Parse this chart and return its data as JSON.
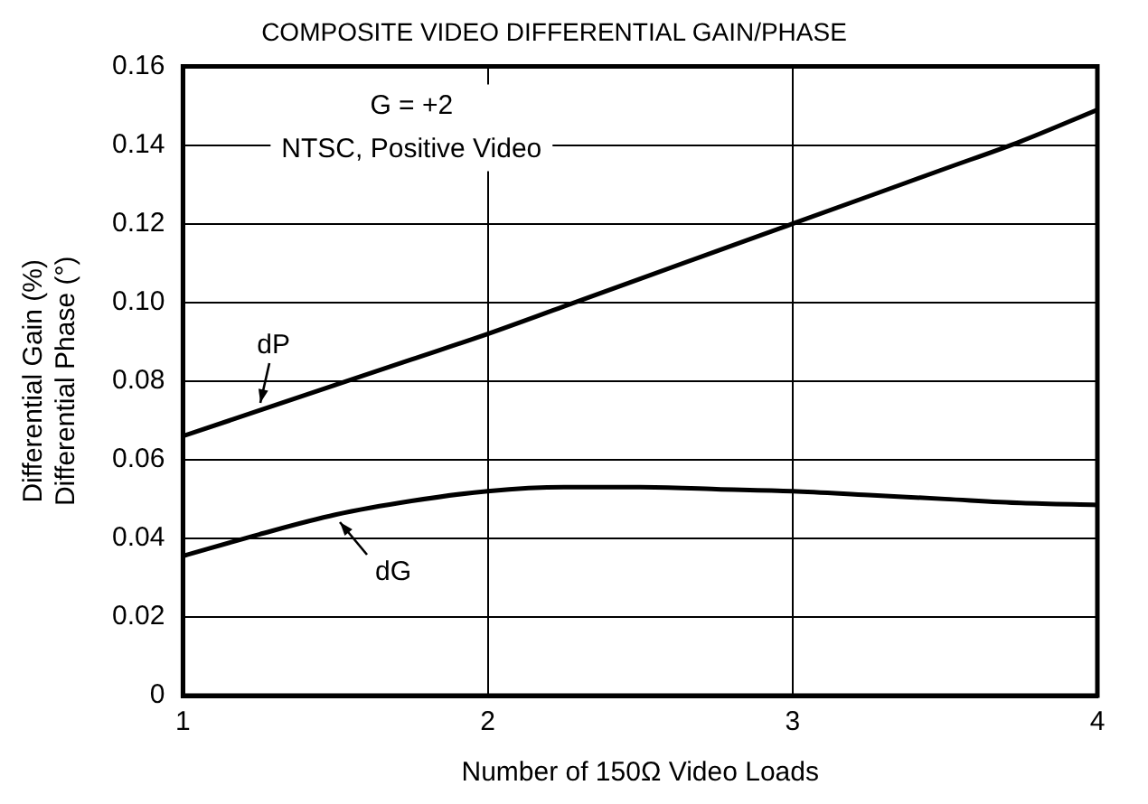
{
  "chart_data": {
    "type": "line",
    "title": "COMPOSITE VIDEO DIFFERENTIAL GAIN/PHASE",
    "xlabel": "Number of 150Ω Video Loads",
    "ylabel": "Differential Gain (%)\nDifferential Phase (°)",
    "x": [
      1,
      1.25,
      1.5,
      1.75,
      2,
      2.25,
      2.5,
      2.75,
      3,
      3.25,
      3.5,
      3.75,
      4
    ],
    "series": [
      {
        "name": "dP",
        "color": "#000000",
        "values": [
          0.066,
          0.0725,
          0.079,
          0.0855,
          0.092,
          0.099,
          0.106,
          0.113,
          0.12,
          0.127,
          0.134,
          0.141,
          0.149
        ]
      },
      {
        "name": "dG",
        "color": "#000000",
        "values": [
          0.0355,
          0.041,
          0.046,
          0.0495,
          0.052,
          0.053,
          0.053,
          0.0525,
          0.052,
          0.051,
          0.05,
          0.049,
          0.0485
        ]
      }
    ],
    "xlim": [
      1,
      4
    ],
    "xticks": [
      1,
      2,
      3,
      4
    ],
    "ylim": [
      0,
      0.16
    ],
    "yticks": [
      0,
      0.02,
      0.04,
      0.06,
      0.08,
      {
        "value": 0.1,
        "label": "0.10"
      },
      0.12,
      0.14,
      0.16
    ],
    "annotations": [
      "G = +2",
      "NTSC, Positive Video"
    ],
    "grid": true,
    "marker": "none",
    "line_style": "solid"
  }
}
